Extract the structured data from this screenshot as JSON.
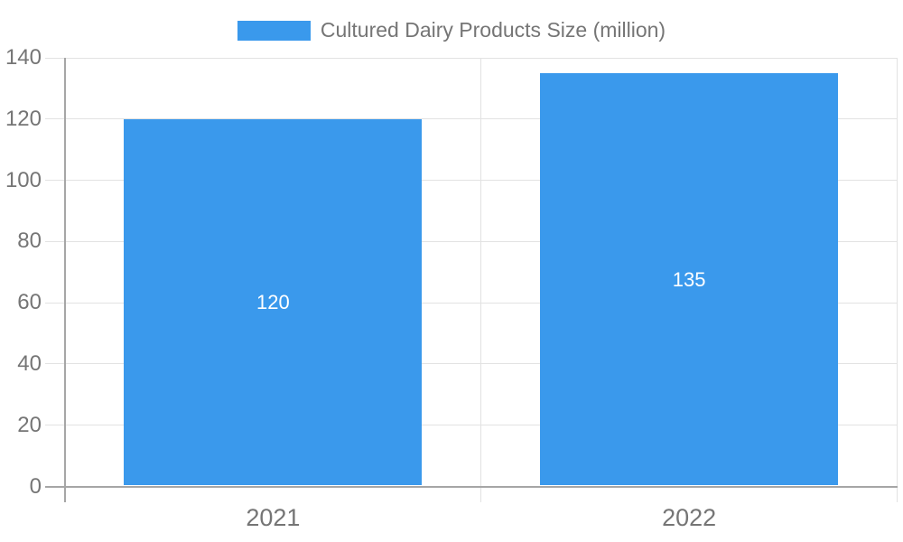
{
  "legend": {
    "items": [
      {
        "label": "Cultured Dairy Products Size (million)",
        "color": "#3a99ec"
      }
    ]
  },
  "chart_data": {
    "type": "bar",
    "title": "Cultured Dairy Products Size (million)",
    "categories": [
      "2021",
      "2022"
    ],
    "series": [
      {
        "name": "Cultured Dairy Products Size (million)",
        "color": "#3a99ec",
        "values": [
          120,
          135
        ],
        "data_labels": [
          "120",
          "135"
        ]
      }
    ],
    "xlabel": "",
    "ylabel": "",
    "ylim": [
      0,
      140
    ],
    "yticks": [
      0,
      20,
      40,
      60,
      80,
      100,
      120,
      140
    ],
    "grid": true,
    "legend_position": "top-center",
    "colors": {
      "bar": "#3a99ec",
      "axis_line": "#a6a6a6",
      "gridline": "#e2e2e2",
      "tick_text": "#757575",
      "bar_label_text": "#ffffff",
      "background": "#ffffff"
    }
  }
}
